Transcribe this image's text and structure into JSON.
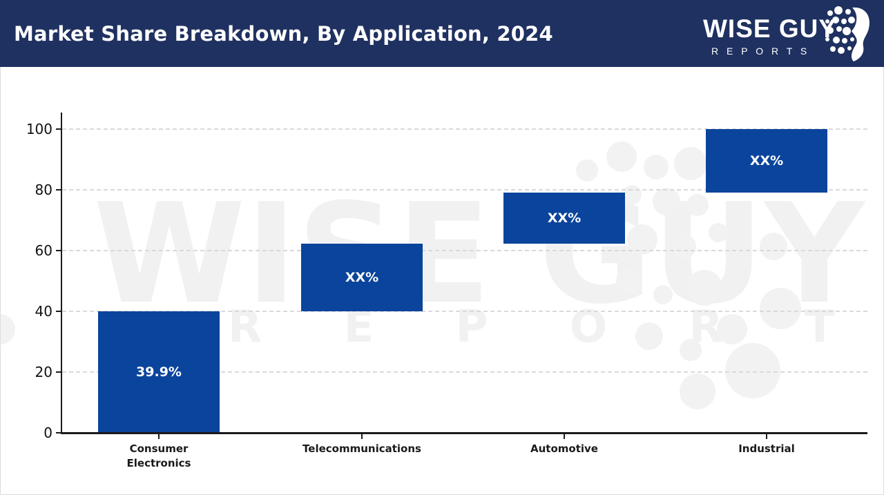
{
  "header": {
    "title": "Market Share Breakdown, By Application, 2024",
    "logo": {
      "name": "WISE GUY",
      "subname": "R E P O R T S"
    }
  },
  "watermark": {
    "line1": "WISE GUY",
    "line2": "R E P O R T S"
  },
  "colors": {
    "header_bg": "#1f3160",
    "bar": "#0b449c",
    "bar_label": "#ffffff",
    "grid": "#d9d9d9",
    "axis": "#1a1a1a",
    "watermark": "#f1f1f1"
  },
  "chart_data": {
    "type": "bar",
    "variant": "waterfall",
    "title": "Market Share Breakdown, By Application, 2024",
    "categories": [
      "Consumer\nElectronics",
      "Telecommunications",
      "Automotive",
      "Industrial"
    ],
    "segments": [
      {
        "category": "Consumer Electronics",
        "start": 0,
        "end": 39.9,
        "label": "39.9%"
      },
      {
        "category": "Telecommunications",
        "start": 39.9,
        "end": 62.2,
        "label": "XX%"
      },
      {
        "category": "Automotive",
        "start": 62.2,
        "end": 79.2,
        "label": "XX%"
      },
      {
        "category": "Industrial",
        "start": 79.2,
        "end": 100,
        "label": "XX%"
      }
    ],
    "xlabel": "",
    "ylabel": "",
    "ylim": [
      0,
      105
    ],
    "yticks": [
      0,
      20,
      40,
      60,
      80,
      100
    ],
    "grid": "dashed-horizontal",
    "legend": "none"
  }
}
